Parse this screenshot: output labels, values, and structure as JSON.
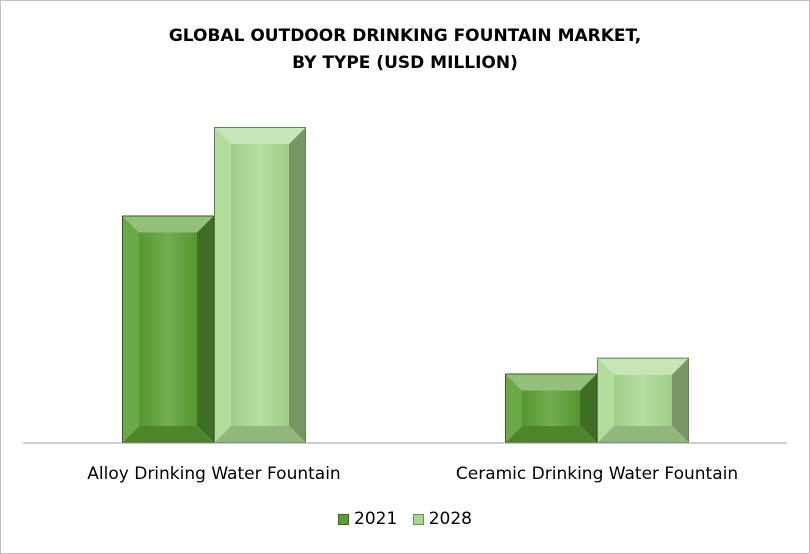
{
  "chart_data": {
    "type": "bar",
    "title_lines": [
      "GLOBAL OUTDOOR DRINKING FOUNTAIN MARKET,",
      "BY TYPE (USD MILLION)"
    ],
    "categories": [
      "Alloy Drinking Water Fountain",
      "Ceramic Drinking Water Fountain"
    ],
    "series": [
      {
        "name": "2021",
        "values": [
          72,
          22
        ],
        "color": "#5a9e33"
      },
      {
        "name": "2028",
        "values": [
          100,
          27
        ],
        "color": "#a8d890"
      }
    ],
    "ylim": [
      0,
      100
    ],
    "grid": false,
    "y_axis_labels_visible": false,
    "legend_position": "bottom"
  }
}
